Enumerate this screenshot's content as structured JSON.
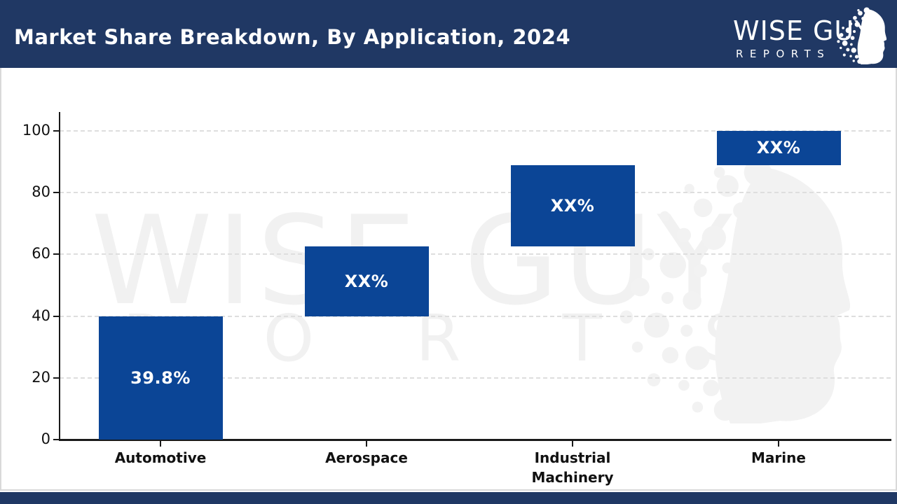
{
  "header": {
    "title": "Market Share Breakdown, By Application, 2024",
    "brand": {
      "name": "WISE GUY",
      "sub": "REPORTS"
    }
  },
  "watermark": {
    "line1": "WISE GUY",
    "line2": "P O R T S"
  },
  "footer": {},
  "colors": {
    "header_bg": "#203864",
    "bar": "#0b4596",
    "bar_label": "#ffffff",
    "grid": "#dedede",
    "axis": "#1a1a1a",
    "watermark": "#f1f1f1"
  },
  "chart_data": {
    "type": "bar",
    "subtype": "waterfall",
    "title": "Market Share Breakdown, By Application, 2024",
    "categories": [
      "Automotive",
      "Aerospace",
      "Industrial\nMachinery",
      "Marine"
    ],
    "segments": [
      {
        "category": "Automotive",
        "start": 0,
        "end": 39.8,
        "label": "39.8%"
      },
      {
        "category": "Aerospace",
        "start": 39.8,
        "end": 62.5,
        "label": "XX%"
      },
      {
        "category": "Industrial Machinery",
        "start": 62.5,
        "end": 89.0,
        "label": "XX%"
      },
      {
        "category": "Marine",
        "start": 89.0,
        "end": 100.0,
        "label": "XX%"
      }
    ],
    "xlabel": "",
    "ylabel": "",
    "ylim": [
      0,
      105
    ],
    "yticks": [
      0,
      20,
      40,
      60,
      80,
      100
    ],
    "grid": "horizontal-dashed",
    "legend": "none",
    "bar_color": "#0b4596"
  }
}
